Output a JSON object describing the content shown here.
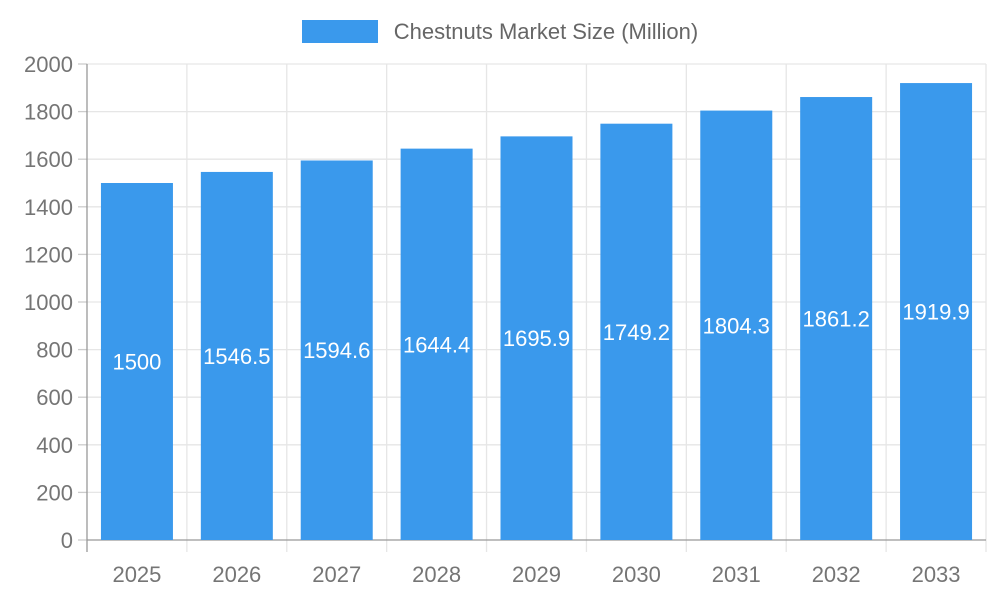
{
  "chart_data": {
    "type": "bar",
    "title": "Chestnuts Market Size (Million)",
    "categories": [
      "2025",
      "2026",
      "2027",
      "2028",
      "2029",
      "2030",
      "2031",
      "2032",
      "2033"
    ],
    "series": [
      {
        "name": "Chestnuts Market Size (Million)",
        "values": [
          1500,
          1546.5,
          1594.6,
          1644.4,
          1695.9,
          1749.2,
          1804.3,
          1861.2,
          1919.9
        ],
        "value_labels": [
          "1500",
          "1546.5",
          "1594.6",
          "1644.4",
          "1695.9",
          "1749.2",
          "1804.3",
          "1861.2",
          "1919.9"
        ]
      }
    ],
    "xlabel": "",
    "ylabel": "",
    "ylim": [
      0,
      2000
    ],
    "ytick_step": 200,
    "grid": true,
    "legend_position": "top-center",
    "value_label_position": "inside-center",
    "colors": {
      "bar": "#3a99ec",
      "grid": "#e6e6e6",
      "axis": "#999999",
      "tick": "#cccccc",
      "tick_text": "#757575",
      "value_text": "#ffffff",
      "legend_text": "#666666",
      "background": "#ffffff"
    }
  }
}
